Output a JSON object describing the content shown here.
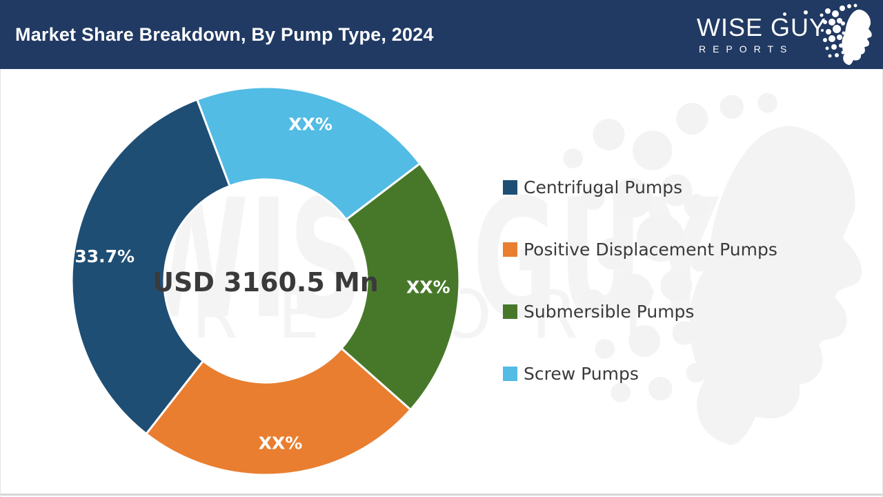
{
  "header": {
    "title": "Market Share Breakdown, By Pump Type, 2024",
    "logo": {
      "line1": "WISE GUY",
      "line2": "REPORTS"
    }
  },
  "watermark": {
    "line1": "WISE GUY",
    "line2": "REPORTS"
  },
  "center_label": "USD 3160.5 Mn",
  "legend": {
    "items": [
      {
        "label": "Centrifugal Pumps",
        "color": "#1F4E74"
      },
      {
        "label": "Positive Displacement Pumps",
        "color": "#E97E30"
      },
      {
        "label": "Submersible Pumps",
        "color": "#47782A"
      },
      {
        "label": "Screw Pumps",
        "color": "#52BCE5"
      }
    ]
  },
  "chart_data": {
    "type": "pie",
    "variant": "donut",
    "title": "Market Share Breakdown, By Pump Type, 2024",
    "center_label": "USD 3160.5 Mn",
    "categories": [
      "Centrifugal Pumps",
      "Positive Displacement Pumps",
      "Submersible Pumps",
      "Screw Pumps"
    ],
    "values": [
      33.7,
      24.0,
      21.9,
      20.4
    ],
    "values_note": "Only 33.7% is printed on the chart; the other three slices are masked as XX% and their values are estimated from arc angles.",
    "displayed_labels": [
      "33.7%",
      "XX%",
      "XX%",
      "XX%"
    ],
    "colors": [
      "#1F4E74",
      "#E97E30",
      "#47782A",
      "#52BCE5"
    ],
    "start_angle_deg": 110.7,
    "direction": "counterclockwise",
    "legend_position": "right"
  }
}
